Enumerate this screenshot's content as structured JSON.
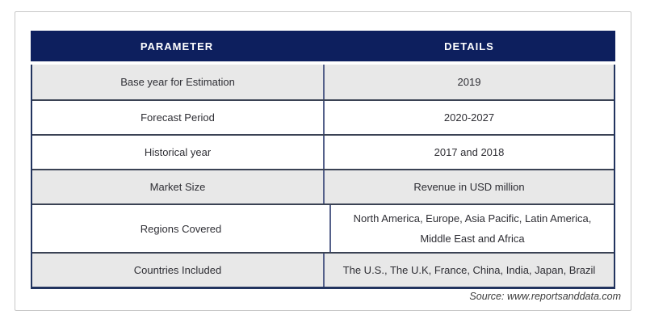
{
  "colors": {
    "header_bg": "#0d1f5e",
    "header_text": "#ffffff",
    "row_shaded_bg": "#e8e8e8",
    "row_plain_bg": "#ffffff",
    "cell_text": "#2e2e34",
    "table_outer_border": "#22345f",
    "row_divider": "#3a4254",
    "column_divider": "#55618a",
    "card_border": "#c8c8c8",
    "source_text": "#3b3b3b"
  },
  "table": {
    "header": {
      "parameter": "PARAMETER",
      "details": "DETAILS"
    },
    "rows": [
      {
        "parameter": "Base year for Estimation",
        "details": "2019"
      },
      {
        "parameter": "Forecast Period",
        "details": "2020-2027"
      },
      {
        "parameter": "Historical year",
        "details": "2017 and 2018"
      },
      {
        "parameter": "Market Size",
        "details": "Revenue in USD million"
      },
      {
        "parameter": "Regions Covered",
        "details": "North America, Europe, Asia Pacific, Latin America, Middle East and Africa"
      },
      {
        "parameter": "Countries Included",
        "details": "The U.S., The  U.K, France, China, India, Japan, Brazil"
      }
    ]
  },
  "source": {
    "text": "Source: www.reportsanddata.com"
  }
}
